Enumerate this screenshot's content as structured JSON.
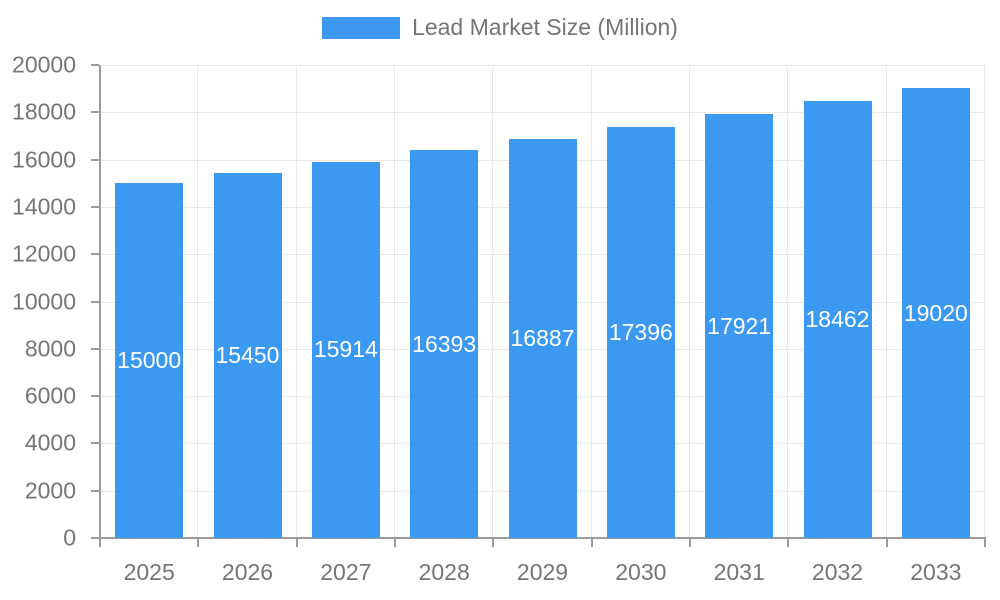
{
  "legend": {
    "label": "Lead Market Size (Million)"
  },
  "colors": {
    "bar": "#3B99F1",
    "axis": "#9B9B9B",
    "grid": "#E6E6E6",
    "tick": "#9B9B9B",
    "axis_text": "#757575",
    "bar_label_text": "#FFFFFF"
  },
  "chart_data": {
    "type": "bar",
    "title": "",
    "categories": [
      "2025",
      "2026",
      "2027",
      "2028",
      "2029",
      "2030",
      "2031",
      "2032",
      "2033"
    ],
    "values": [
      15000,
      15450,
      15914,
      16393,
      16887,
      17396,
      17921,
      18462,
      19020
    ],
    "series_name": "Lead Market Size (Million)",
    "xlabel": "",
    "ylabel": "",
    "ylim": [
      0,
      20000
    ],
    "ytick_step": 2000,
    "ytick_labels": [
      "0",
      "2000",
      "4000",
      "6000",
      "8000",
      "10000",
      "12000",
      "14000",
      "16000",
      "18000",
      "20000"
    ],
    "grid": true,
    "legend_position": "top",
    "bar_labels_inside": true
  }
}
